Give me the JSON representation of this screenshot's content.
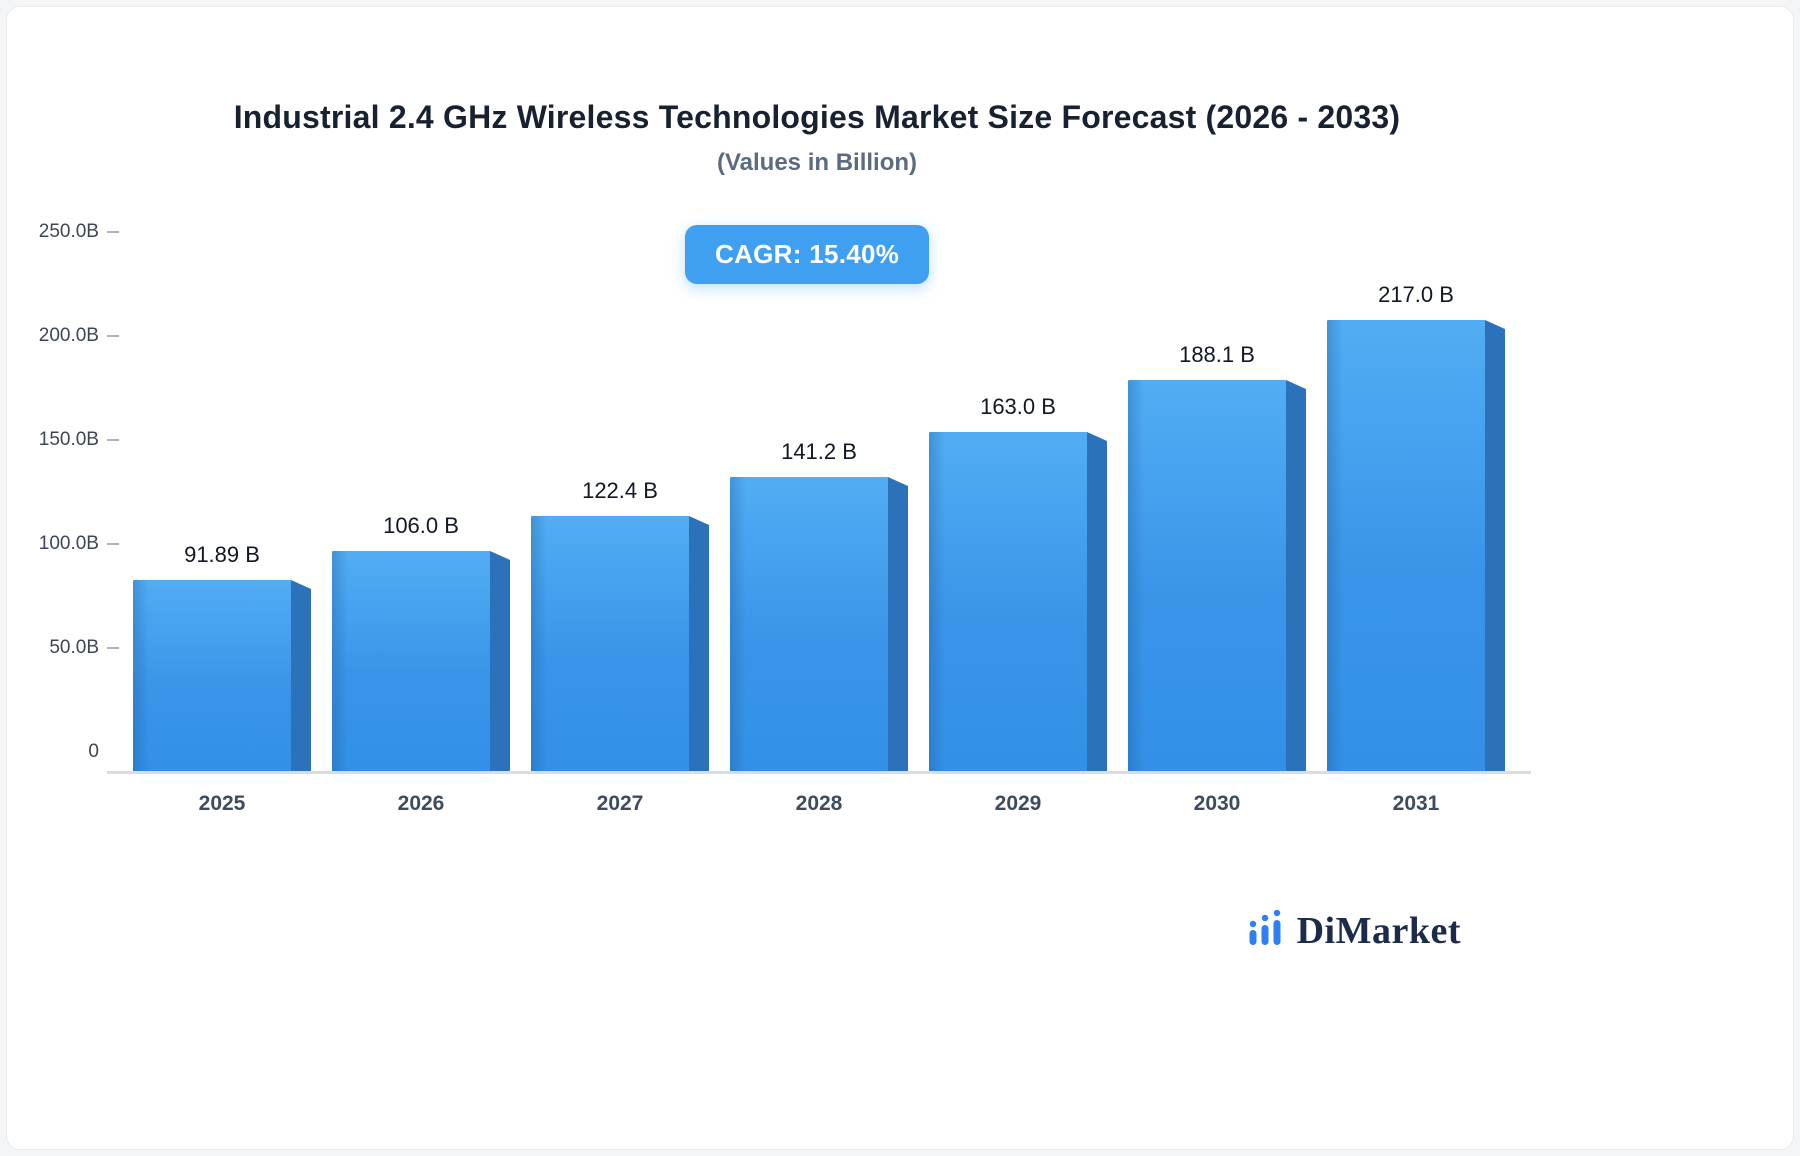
{
  "header": {
    "title": "Industrial 2.4 GHz Wireless Technologies Market Size Forecast (2026 - 2033)",
    "subtitle": "(Values in Billion)"
  },
  "badge": {
    "label": "CAGR: 15.40%"
  },
  "chart_data": {
    "type": "bar",
    "title": "Industrial 2.4 GHz Wireless Technologies Market Size Forecast (2026 - 2033)",
    "subtitle": "(Values in Billion)",
    "categories": [
      "2025",
      "2026",
      "2027",
      "2028",
      "2029",
      "2030",
      "2031"
    ],
    "values": [
      91.89,
      106.0,
      122.4,
      141.2,
      163.0,
      188.1,
      217.0
    ],
    "value_labels": [
      "91.89 B",
      "106.0 B",
      "122.4 B",
      "141.2 B",
      "163.0 B",
      "188.1 B",
      "217.0 B"
    ],
    "ylabel": "",
    "xlabel": "",
    "ylim": [
      0,
      250
    ],
    "yticks": [
      {
        "value": 250,
        "label": "250.0B"
      },
      {
        "value": 200,
        "label": "200.0B"
      },
      {
        "value": 150,
        "label": "150.0B"
      },
      {
        "value": 100,
        "label": "100.0B"
      },
      {
        "value": 50,
        "label": "50.0B"
      },
      {
        "value": 0,
        "label": "0"
      }
    ],
    "grid": false,
    "legend": false,
    "colors": {
      "bar_top": "#52adf4",
      "bar_bottom": "#3390e6",
      "bar_side": "#2c72ba",
      "axis_line": "#d9dde2",
      "badge_blue": "#3fa0f2"
    }
  },
  "logo": {
    "text": "DiMarket",
    "icon": "bar-chart-icon",
    "color": "#1c2b4a",
    "icon_color": "#2e7ff0"
  }
}
